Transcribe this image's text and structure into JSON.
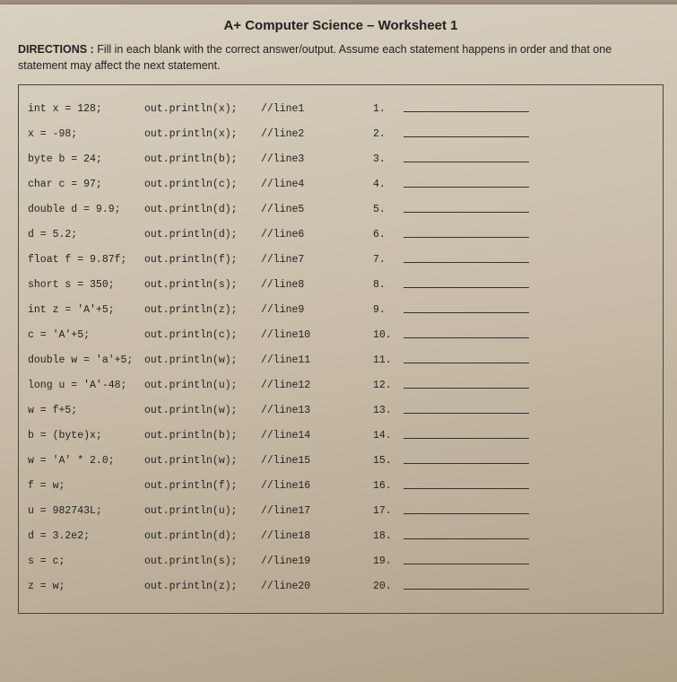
{
  "title": "A+ Computer Science – Worksheet 1",
  "directions_label": "DIRECTIONS :",
  "directions_text": "Fill in each blank with the correct answer/output. Assume each statement happens in order and that one statement may affect the next statement.",
  "rows": [
    {
      "stmt": "int x = 128;",
      "print": "out.println(x);",
      "comment": "//line1",
      "num": "1."
    },
    {
      "stmt": "x = -98;",
      "print": "out.println(x);",
      "comment": "//line2",
      "num": "2."
    },
    {
      "stmt": "byte b = 24;",
      "print": "out.println(b);",
      "comment": "//line3",
      "num": "3."
    },
    {
      "stmt": "char c = 97;",
      "print": "out.println(c);",
      "comment": "//line4",
      "num": "4."
    },
    {
      "stmt": "double d = 9.9;",
      "print": "out.println(d);",
      "comment": "//line5",
      "num": "5."
    },
    {
      "stmt": "d = 5.2;",
      "print": "out.println(d);",
      "comment": "//line6",
      "num": "6."
    },
    {
      "stmt": "float f = 9.87f;",
      "print": "out.println(f);",
      "comment": "//line7",
      "num": "7."
    },
    {
      "stmt": "short s = 350;",
      "print": "out.println(s);",
      "comment": "//line8",
      "num": "8."
    },
    {
      "stmt": "int z = 'A'+5;",
      "print": "out.println(z);",
      "comment": "//line9",
      "num": "9."
    },
    {
      "stmt": "c = 'A'+5;",
      "print": "out.println(c);",
      "comment": "//line10",
      "num": "10."
    },
    {
      "stmt": "double w = 'a'+5;",
      "print": "out.println(w);",
      "comment": "//line11",
      "num": "11."
    },
    {
      "stmt": "long u = 'A'-48;",
      "print": "out.println(u);",
      "comment": "//line12",
      "num": "12."
    },
    {
      "stmt": "w = f+5;",
      "print": "out.println(w);",
      "comment": "//line13",
      "num": "13."
    },
    {
      "stmt": "b = (byte)x;",
      "print": "out.println(b);",
      "comment": "//line14",
      "num": "14."
    },
    {
      "stmt": "w = 'A' * 2.0;",
      "print": "out.println(w);",
      "comment": "//line15",
      "num": "15."
    },
    {
      "stmt": "f = w;",
      "print": "out.println(f);",
      "comment": "//line16",
      "num": "16."
    },
    {
      "stmt": "u = 982743L;",
      "print": "out.println(u);",
      "comment": "//line17",
      "num": "17."
    },
    {
      "stmt": "d = 3.2e2;",
      "print": "out.println(d);",
      "comment": "//line18",
      "num": "18."
    },
    {
      "stmt": "s = c;",
      "print": "out.println(s);",
      "comment": "//line19",
      "num": "19."
    },
    {
      "stmt": "z = w;",
      "print": "out.println(z);",
      "comment": "//line20",
      "num": "20."
    }
  ]
}
